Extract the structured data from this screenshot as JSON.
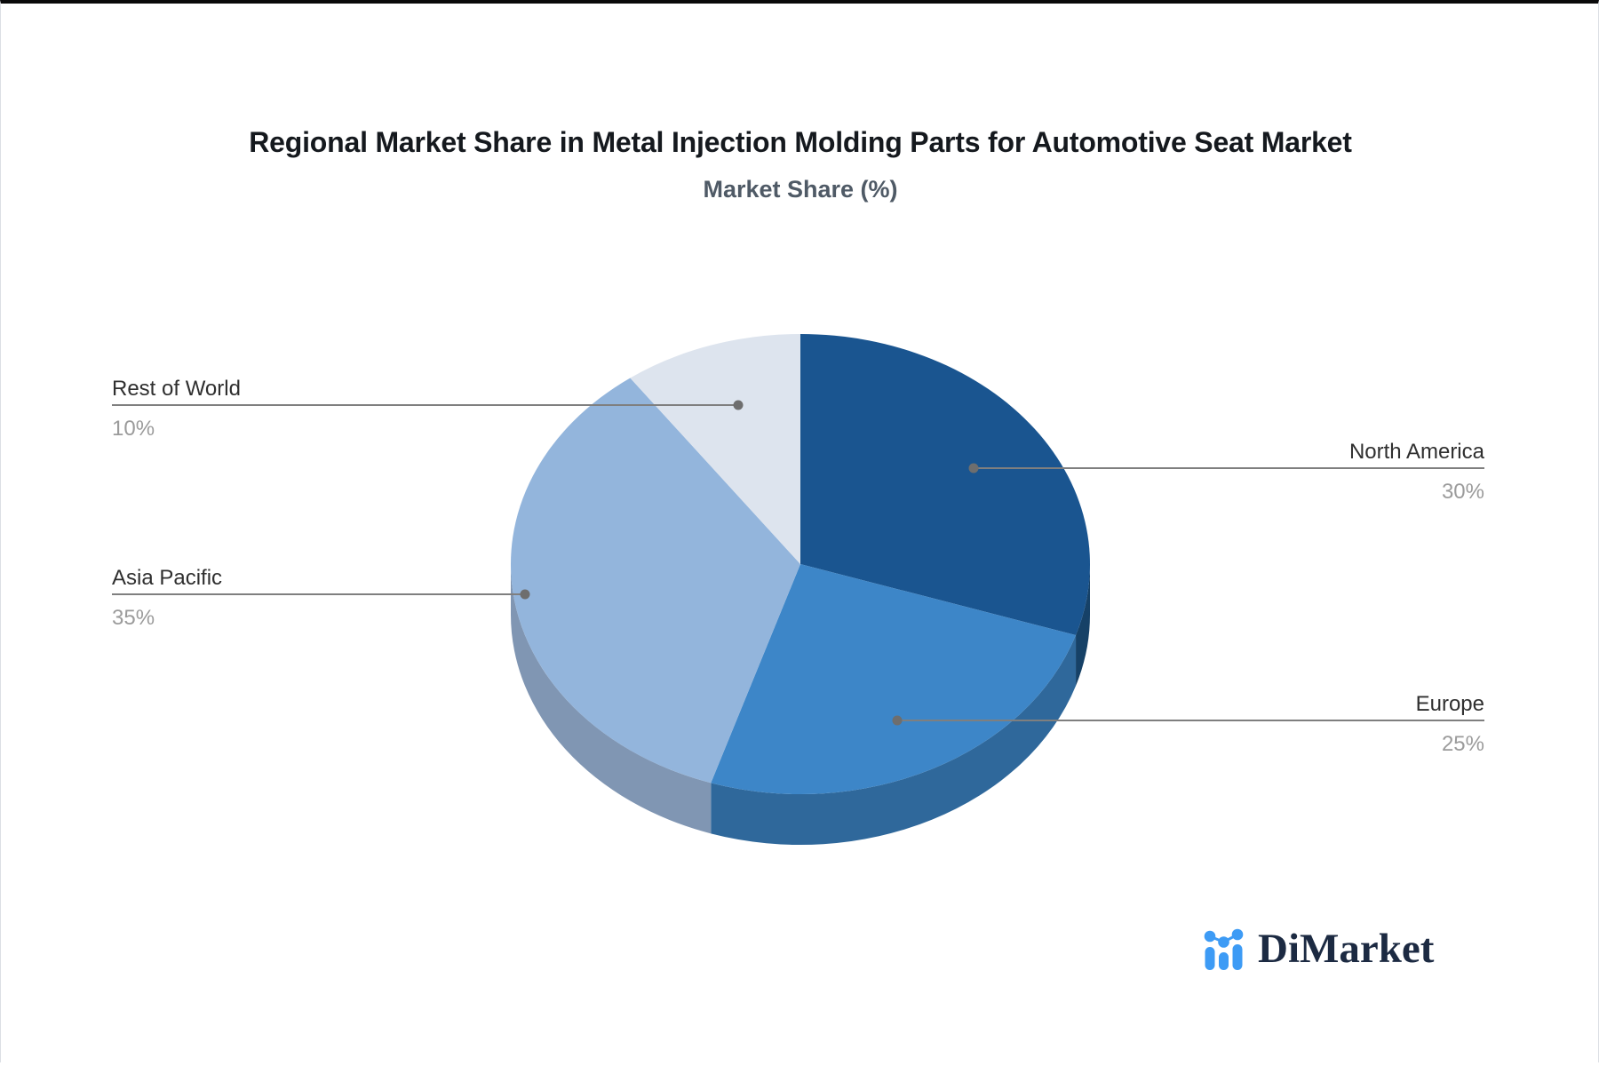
{
  "header": {
    "title": "Regional Market Share in Metal Injection Molding Parts for Automotive Seat Market",
    "subtitle": "Market Share (%)"
  },
  "chart_data": {
    "type": "pie",
    "title": "Regional Market Share in Metal Injection Molding Parts for Automotive Seat Market",
    "subtitle": "Market Share (%)",
    "unit": "%",
    "effect": "3d",
    "start_angle": "top",
    "direction": "clockwise",
    "legend_position": "none",
    "slices": [
      {
        "label": "North America",
        "value": 30,
        "display": "30%",
        "color": "#1a5590",
        "side_color": "#164167",
        "callout_side": "right"
      },
      {
        "label": "Europe",
        "value": 25,
        "display": "25%",
        "color": "#3d86c8",
        "side_color": "#2f689b",
        "callout_side": "right"
      },
      {
        "label": "Asia Pacific",
        "value": 35,
        "display": "35%",
        "color": "#93b5dc",
        "side_color": "#8096b3",
        "callout_side": "left"
      },
      {
        "label": "Rest of World",
        "value": 10,
        "display": "10%",
        "color": "#dde4ee",
        "side_color": "#b9c3d4",
        "callout_side": "left"
      }
    ],
    "callout_colors": {
      "leader_line": "#7f7f7f",
      "dot": "#6e6e6e",
      "label_text": "#2f2f2f",
      "value_text": "#9b9b9b"
    }
  },
  "branding": {
    "name": "DiMarket",
    "logo_color": "#3d9bf5",
    "text_color": "#1c2a42"
  }
}
